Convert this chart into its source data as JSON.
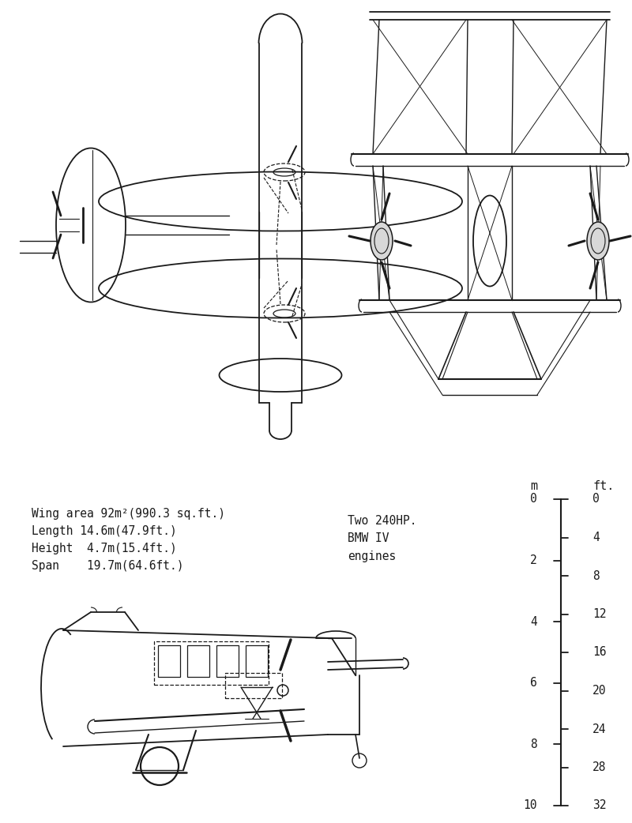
{
  "bg_color": "#ffffff",
  "line_color": "#1a1a1a",
  "specs_text": [
    "Wing area 92m²(990.3 sq.ft.)",
    "Length 14.6m(47.9ft.)",
    "Height  4.7m(15.4ft.)",
    "Span    19.7m(64.6ft.)"
  ],
  "engine_text": [
    "Two 240HP.",
    "BMW IV",
    "engines"
  ],
  "scale_m": [
    0,
    2,
    4,
    6,
    8,
    10
  ],
  "scale_ft": [
    0,
    4,
    8,
    12,
    16,
    20,
    24,
    28,
    32
  ],
  "figsize": [
    8.0,
    10.42
  ],
  "dpi": 100
}
